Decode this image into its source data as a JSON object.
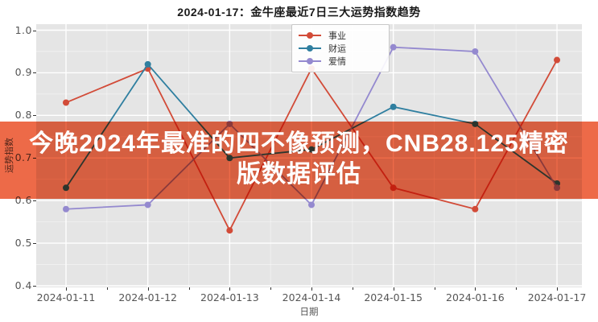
{
  "title": "2024-01-17：金牛座最近7日三大运势指数趋势",
  "banner": {
    "line1": "今晚2024年最准的四不像预测，CNB28.125精密",
    "line2": "版数据评估",
    "bg_color": "#ED6A48",
    "text_color": "#ffffff"
  },
  "chart_data": {
    "type": "line",
    "title": "2024-01-17：金牛座最近7日三大运势指数趋势",
    "xlabel": "日期",
    "ylabel": "运势指数",
    "x": [
      "2024-01-11",
      "2024-01-12",
      "2024-01-13",
      "2024-01-14",
      "2024-01-15",
      "2024-01-16",
      "2024-01-17"
    ],
    "series": [
      {
        "name": "事业",
        "color": "#D24B38",
        "values": [
          0.83,
          0.91,
          0.53,
          0.91,
          0.63,
          0.58,
          0.93
        ]
      },
      {
        "name": "财运",
        "color": "#2F7FA0",
        "values": [
          0.63,
          0.92,
          0.7,
          0.72,
          0.82,
          0.78,
          0.64
        ]
      },
      {
        "name": "爱情",
        "color": "#9489CF",
        "values": [
          0.58,
          0.59,
          0.78,
          0.59,
          0.96,
          0.95,
          0.63
        ]
      }
    ],
    "ylim": [
      0.4,
      1.0
    ],
    "yticks": [
      "0.4",
      "0.5",
      "0.6",
      "0.7",
      "0.8",
      "0.9",
      "1.0"
    ],
    "grid": true,
    "plot_bg_color": "#e5e5e5",
    "legend_position": "top-center"
  }
}
